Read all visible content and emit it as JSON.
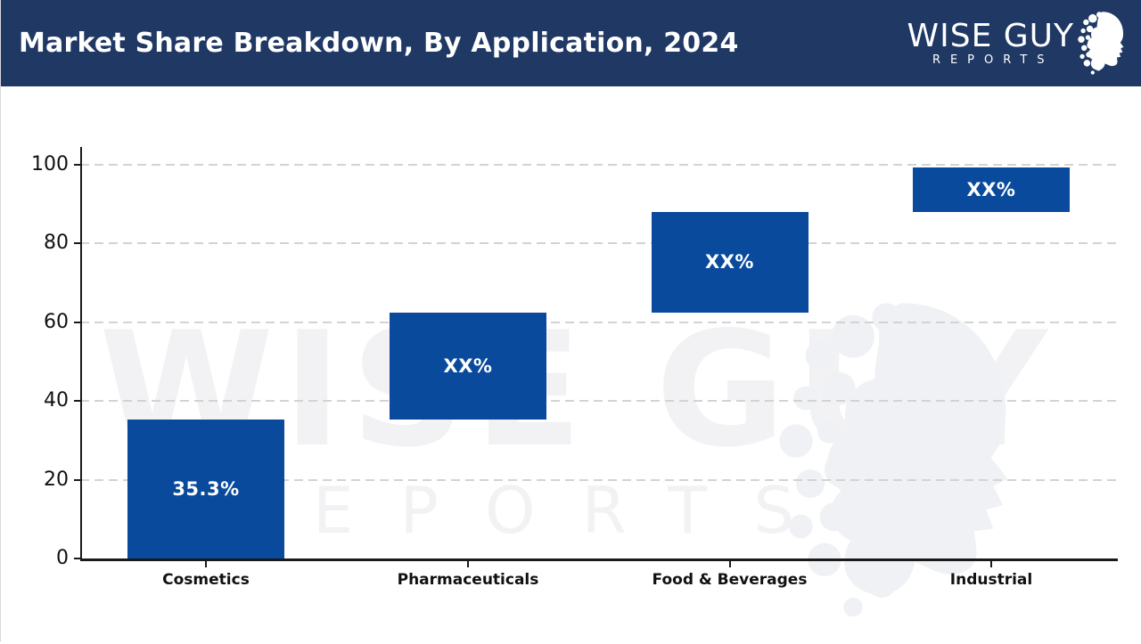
{
  "header": {
    "title": "Market Share Breakdown, By Application, 2024",
    "bg_color": "#1f3864",
    "logo": {
      "line1": "WISE GUY",
      "line2": "REPORTS",
      "head_icon": "dotted-face-profile"
    }
  },
  "watermark": {
    "line1": "WISE GUY",
    "line2": "REPORTS",
    "head_icon": "dotted-face-profile"
  },
  "chart_data": {
    "type": "bar",
    "subtype": "floating-waterfall",
    "title": "Market Share Breakdown, By Application, 2024",
    "xlabel": "",
    "ylabel": "",
    "categories": [
      "Cosmetics",
      "Pharmaceuticals",
      "Food & Beverages",
      "Industrial"
    ],
    "segments": [
      [
        0,
        35.3
      ],
      [
        35.3,
        62.4
      ],
      [
        62.4,
        88.0
      ],
      [
        88.0,
        99.2
      ]
    ],
    "bar_labels": [
      "35.3%",
      "XX%",
      "XX%",
      "XX%"
    ],
    "yticks": [
      0,
      20,
      40,
      60,
      80,
      100
    ],
    "ytick_labels": [
      "0",
      "20",
      "40",
      "60",
      "80",
      "100"
    ],
    "ylim": [
      0,
      104
    ],
    "grid": "horizontal-dashed",
    "legend": "none",
    "bar_color": "#0a4a9c",
    "bar_label_color": "#ffffff",
    "axis_color": "#1a1a1a",
    "gridline_color": "#d3d3d3"
  }
}
